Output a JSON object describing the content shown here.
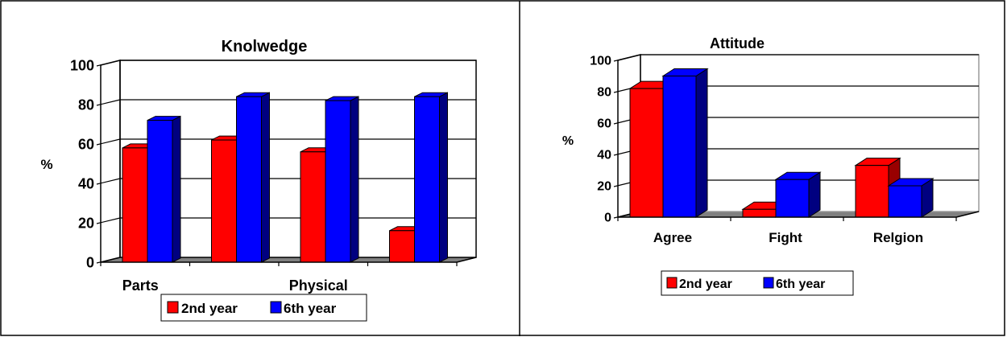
{
  "colors": {
    "series1_front": "#ff0000",
    "series1_top": "#ff0000",
    "series1_side": "#990000",
    "series2_front": "#0000ff",
    "series2_top": "#0000ff",
    "series2_side": "#000080",
    "floor": "#808080",
    "background": "#ffffff",
    "line": "#000000"
  },
  "chart_data": [
    {
      "type": "bar",
      "style": "3d-clustered",
      "title": "Knolwedge",
      "ylabel": "%",
      "xlabel": "",
      "ylim": [
        0,
        100
      ],
      "yticks": [
        "0",
        "20",
        "40",
        "60",
        "80",
        "100"
      ],
      "categories": [
        "Parts",
        "",
        "Physical",
        ""
      ],
      "series": [
        {
          "name": "2nd year",
          "values": [
            58,
            62,
            56,
            16
          ]
        },
        {
          "name": "6th year",
          "values": [
            72,
            84,
            82,
            84
          ]
        }
      ],
      "gridlines": true,
      "legend": "bottom"
    },
    {
      "type": "bar",
      "style": "3d-clustered",
      "title": "Attitude",
      "ylabel": "%",
      "xlabel": "",
      "ylim": [
        0,
        100
      ],
      "yticks": [
        "0",
        "20",
        "40",
        "60",
        "80",
        "100"
      ],
      "categories": [
        "Agree",
        "Fight",
        "Relgion"
      ],
      "series": [
        {
          "name": "2nd year",
          "values": [
            82,
            5,
            33
          ]
        },
        {
          "name": "6th year",
          "values": [
            90,
            24,
            20
          ]
        }
      ],
      "gridlines": true,
      "legend": "bottom"
    }
  ]
}
